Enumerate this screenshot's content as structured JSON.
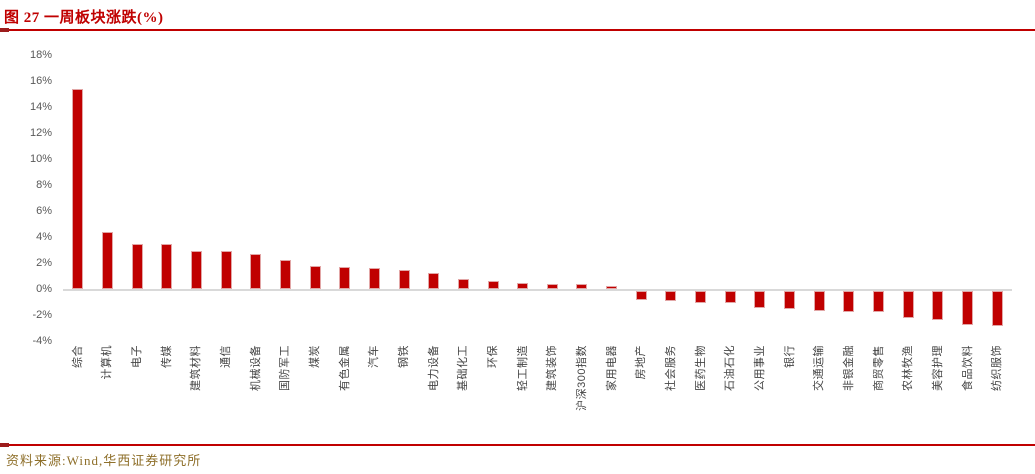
{
  "figure": {
    "title": "图 27 一周板块涨跌(%)"
  },
  "footer": {
    "source": "资料来源:Wind,华西证券研究所"
  },
  "colors": {
    "accent_red": "#c00000",
    "accent_red_dark": "#9c1c1c",
    "bar_fill": "#c00000",
    "bar_edge": "#e2a6a6",
    "axis_line": "#d9d9d9",
    "tick_text": "#595959",
    "category_text": "#454545",
    "title_text": "#c00000",
    "source_text": "#8e6f2a"
  },
  "chart_data": {
    "type": "bar",
    "title": "一周板块涨跌(%)",
    "xlabel": "",
    "ylabel": "",
    "grid": false,
    "legend": false,
    "ylim": [
      -4,
      18
    ],
    "ytick_labels": [
      "18%",
      "16%",
      "14%",
      "12%",
      "10%",
      "8%",
      "6%",
      "4%",
      "2%",
      "0%",
      "-2%",
      "-4%"
    ],
    "ytick_values": [
      18,
      16,
      14,
      12,
      10,
      8,
      6,
      4,
      2,
      0,
      -2,
      -4
    ],
    "categories": [
      "综合",
      "计算机",
      "电子",
      "传媒",
      "建筑材料",
      "通信",
      "机械设备",
      "国防军工",
      "煤炭",
      "有色金属",
      "汽车",
      "钢铁",
      "电力设备",
      "基础化工",
      "环保",
      "轻工制造",
      "建筑装饰",
      "沪深300指数",
      "家用电器",
      "房地产",
      "社会服务",
      "医药生物",
      "石油石化",
      "公用事业",
      "银行",
      "交通运输",
      "非银金融",
      "商贸零售",
      "农林牧渔",
      "美容护理",
      "食品饮料",
      "纺织服饰"
    ],
    "values": [
      15.4,
      4.4,
      3.5,
      3.5,
      2.9,
      2.9,
      2.7,
      2.2,
      1.8,
      1.7,
      1.6,
      1.5,
      1.2,
      0.8,
      0.6,
      0.5,
      0.4,
      0.4,
      0.2,
      -0.7,
      -0.8,
      -0.9,
      -0.9,
      -1.3,
      -1.4,
      -1.5,
      -1.6,
      -1.6,
      -2.1,
      -2.2,
      -2.6,
      -2.7
    ]
  }
}
